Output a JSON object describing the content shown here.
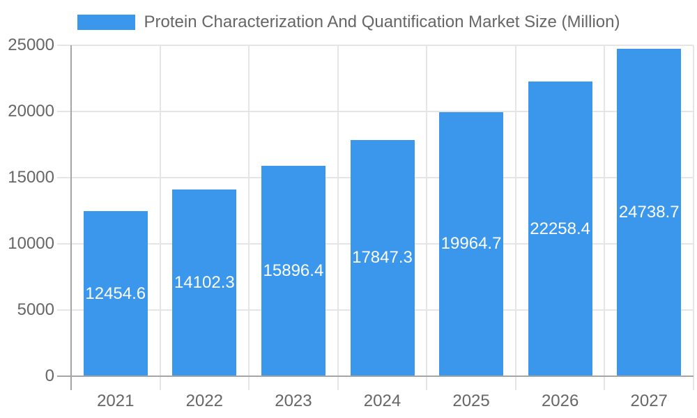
{
  "legend": {
    "label": "Protein Characterization And Quantification Market Size (Million)"
  },
  "chart_data": {
    "type": "bar",
    "title": "Protein Characterization And Quantification Market Size (Million)",
    "categories": [
      "2021",
      "2022",
      "2023",
      "2024",
      "2025",
      "2026",
      "2027"
    ],
    "values": [
      12454.6,
      14102.3,
      15896.4,
      17847.3,
      19964.7,
      22258.4,
      24738.7
    ],
    "value_labels": [
      "12454.6",
      "14102.3",
      "15896.4",
      "17847.3",
      "19964.7",
      "22258.4",
      "24738.7"
    ],
    "xlabel": "",
    "ylabel": "",
    "ylim": [
      0,
      25000
    ],
    "yticks": [
      0,
      5000,
      10000,
      15000,
      20000,
      25000
    ],
    "ytick_labels": [
      "0",
      "5000",
      "10000",
      "15000",
      "20000",
      "25000"
    ],
    "grid": true,
    "legend_position": "top",
    "colors": {
      "bar": "#3A97EC",
      "value_label": "#FFFFFF",
      "axis_text": "#666666",
      "gridline": "#E5E5E5",
      "axis_line": "#A5A5A5",
      "background": "#FFFFFF"
    }
  }
}
